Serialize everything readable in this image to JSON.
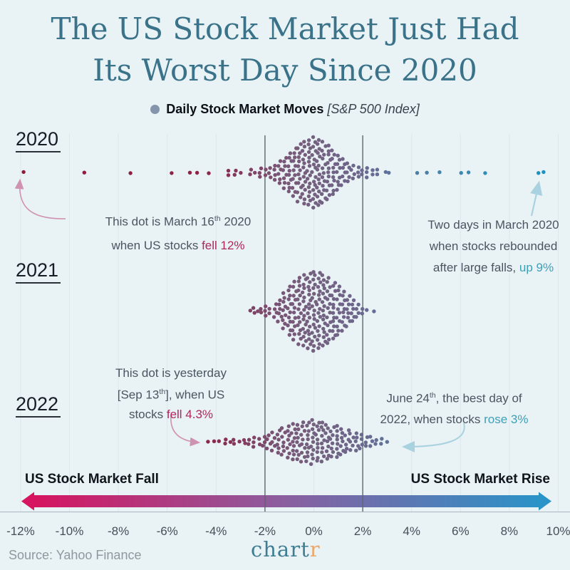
{
  "title": {
    "line1": "The US Stock Market Just Had",
    "line2": "Its Worst Day Since 2020"
  },
  "legend": {
    "label": "Daily Stock Market Moves ",
    "sublabel": "[S&P 500 Index]",
    "dot_color": "#8494ab"
  },
  "annotations": [
    {
      "name": "annotation-march-2020-crash",
      "lines": [
        [
          {
            "t": "This dot is March 16"
          },
          {
            "t": "th",
            "sup": true
          },
          {
            "t": " 2020"
          }
        ],
        [
          {
            "t": "when US stocks "
          },
          {
            "t": "fell 12%",
            "c": "fall"
          }
        ]
      ]
    },
    {
      "name": "annotation-march-2020-rebound",
      "lines": [
        [
          {
            "t": "Two days in March 2020"
          }
        ],
        [
          {
            "t": "when stocks rebounded"
          }
        ],
        [
          {
            "t": "after large falls, "
          },
          {
            "t": "up 9%",
            "c": "rise"
          }
        ]
      ]
    },
    {
      "name": "annotation-sep-13-2022",
      "lines": [
        [
          {
            "t": "This dot is yesterday"
          }
        ],
        [
          {
            "t": "[Sep 13"
          },
          {
            "t": "th",
            "sup": true
          },
          {
            "t": "], when US"
          }
        ],
        [
          {
            "t": "stocks "
          },
          {
            "t": "fell 4.3%",
            "c": "fall"
          }
        ]
      ]
    },
    {
      "name": "annotation-june-24-2022",
      "lines": [
        [
          {
            "t": "June 24"
          },
          {
            "t": "th",
            "sup": true
          },
          {
            "t": ", the best day of"
          }
        ],
        [
          {
            "t": "2022, when stocks "
          },
          {
            "t": "rose 3%",
            "c": "rise"
          }
        ]
      ]
    }
  ],
  "footer": {
    "fall_label": "US Stock Market Fall",
    "rise_label": "US Stock Market Rise",
    "source": "Source: Yahoo Finance",
    "logo_part1": "chart",
    "logo_part2": "r"
  },
  "colors": {
    "background": "#e9f2f5",
    "title": "#3a7389",
    "annotation_text": "#4a5561",
    "fall_accent": "#b0265d",
    "rise_accent": "#3f9fb5",
    "grid_light": "#dce8ee",
    "grid_dark": "#5c6670",
    "axis_line": "#aab6bd",
    "arrow_pink": "#cf93b1",
    "arrow_blue": "#a9d2e0",
    "gradient_left": "#d6145f",
    "gradient_mid": "#8a5fa0",
    "gradient_right": "#2a93c8"
  },
  "chart_data": {
    "type": "scatter",
    "variant": "beeswarm-by-year",
    "title": "Daily Stock Market Moves [S&P 500 Index]",
    "axis": {
      "min": -12,
      "max": 10,
      "tick_step": 2,
      "tick_values": [
        -12,
        -10,
        -8,
        -6,
        -4,
        -2,
        0,
        2,
        4,
        6,
        8,
        10
      ],
      "tick_labels": [
        "-12%",
        "-10%",
        "-8%",
        "-6%",
        "-4%",
        "-2%",
        "0%",
        "2%",
        "4%",
        "6%",
        "8%",
        "10%"
      ]
    },
    "reference_lines_pct": [
      -2,
      2
    ],
    "highlights": [
      {
        "year": "2020",
        "label": "March 16th 2020, US stocks fell 12%",
        "value_pct": -12
      },
      {
        "year": "2020",
        "label": "Two days in March 2020, rebounded up 9%",
        "value_pct": 9
      },
      {
        "year": "2022",
        "label": "Yesterday [Sep 13th], stocks fell 4.3%",
        "value_pct": -4.3
      },
      {
        "year": "2022",
        "label": "June 24th, best day of 2022, rose 3%",
        "value_pct": 3
      }
    ],
    "rows": [
      {
        "year": "2020",
        "bins": [
          [
            -11.9,
            1
          ],
          [
            -9.4,
            1
          ],
          [
            -7.5,
            1
          ],
          [
            -5.8,
            1
          ],
          [
            -5.1,
            1
          ],
          [
            -4.8,
            1
          ],
          [
            -4.3,
            1
          ],
          [
            -3.5,
            2
          ],
          [
            -3.2,
            2
          ],
          [
            -3.0,
            1
          ],
          [
            -2.6,
            2
          ],
          [
            -2.4,
            1
          ],
          [
            -2.2,
            3
          ],
          [
            -2.0,
            2
          ],
          [
            -1.8,
            3
          ],
          [
            -1.6,
            4
          ],
          [
            -1.4,
            6
          ],
          [
            -1.2,
            8
          ],
          [
            -1.0,
            10
          ],
          [
            -0.8,
            12
          ],
          [
            -0.6,
            14
          ],
          [
            -0.4,
            15
          ],
          [
            -0.2,
            16
          ],
          [
            0.0,
            17
          ],
          [
            0.2,
            16
          ],
          [
            0.4,
            15
          ],
          [
            0.6,
            13
          ],
          [
            0.8,
            11
          ],
          [
            1.0,
            9
          ],
          [
            1.2,
            7
          ],
          [
            1.4,
            5
          ],
          [
            1.6,
            4
          ],
          [
            1.8,
            3
          ],
          [
            2.0,
            2
          ],
          [
            2.2,
            3
          ],
          [
            2.4,
            2
          ],
          [
            2.6,
            2
          ],
          [
            2.9,
            1
          ],
          [
            3.1,
            1
          ],
          [
            4.2,
            1
          ],
          [
            4.6,
            1
          ],
          [
            5.1,
            1
          ],
          [
            6.0,
            1
          ],
          [
            6.3,
            1
          ],
          [
            7.0,
            1
          ],
          [
            9.2,
            1
          ],
          [
            9.4,
            1
          ]
        ]
      },
      {
        "year": "2021",
        "bins": [
          [
            -2.6,
            1
          ],
          [
            -2.45,
            2
          ],
          [
            -2.3,
            1
          ],
          [
            -2.15,
            2
          ],
          [
            -2.0,
            3
          ],
          [
            -1.8,
            2
          ],
          [
            -1.6,
            4
          ],
          [
            -1.4,
            6
          ],
          [
            -1.2,
            9
          ],
          [
            -1.0,
            12
          ],
          [
            -0.8,
            14
          ],
          [
            -0.6,
            16
          ],
          [
            -0.4,
            17
          ],
          [
            -0.2,
            18
          ],
          [
            0.0,
            19
          ],
          [
            0.2,
            18
          ],
          [
            0.4,
            17
          ],
          [
            0.6,
            16
          ],
          [
            0.8,
            14
          ],
          [
            1.0,
            12
          ],
          [
            1.2,
            10
          ],
          [
            1.4,
            8
          ],
          [
            1.6,
            6
          ],
          [
            1.8,
            4
          ],
          [
            2.0,
            2
          ],
          [
            2.2,
            1
          ],
          [
            2.45,
            1
          ]
        ]
      },
      {
        "year": "2022",
        "bins": [
          [
            -4.3,
            1
          ],
          [
            -4.05,
            1
          ],
          [
            -3.85,
            1
          ],
          [
            -3.65,
            2
          ],
          [
            -3.45,
            1
          ],
          [
            -3.25,
            2
          ],
          [
            -3.05,
            1
          ],
          [
            -2.85,
            2
          ],
          [
            -2.65,
            2
          ],
          [
            -2.45,
            3
          ],
          [
            -2.25,
            2
          ],
          [
            -2.05,
            3
          ],
          [
            -1.85,
            4
          ],
          [
            -1.65,
            5
          ],
          [
            -1.45,
            6
          ],
          [
            -1.25,
            7
          ],
          [
            -1.05,
            8
          ],
          [
            -0.85,
            9
          ],
          [
            -0.65,
            9
          ],
          [
            -0.45,
            10
          ],
          [
            -0.25,
            10
          ],
          [
            -0.05,
            11
          ],
          [
            0.15,
            10
          ],
          [
            0.35,
            10
          ],
          [
            0.55,
            9
          ],
          [
            0.75,
            8
          ],
          [
            0.95,
            8
          ],
          [
            1.15,
            7
          ],
          [
            1.35,
            6
          ],
          [
            1.55,
            5
          ],
          [
            1.75,
            5
          ],
          [
            1.95,
            4
          ],
          [
            2.15,
            3
          ],
          [
            2.35,
            3
          ],
          [
            2.55,
            2
          ],
          [
            2.75,
            2
          ],
          [
            3.0,
            1
          ]
        ]
      }
    ],
    "color_stops": [
      [
        -12,
        "#8e1b38"
      ],
      [
        -4.5,
        "#8d2346"
      ],
      [
        -3,
        "#833a5e"
      ],
      [
        -1.5,
        "#795374"
      ],
      [
        0,
        "#746180"
      ],
      [
        1.5,
        "#6e6589"
      ],
      [
        2.5,
        "#656d95"
      ],
      [
        4,
        "#4f7da3"
      ],
      [
        6,
        "#3d88b0"
      ],
      [
        8,
        "#2591bd"
      ],
      [
        10,
        "#1a93c1"
      ]
    ]
  }
}
